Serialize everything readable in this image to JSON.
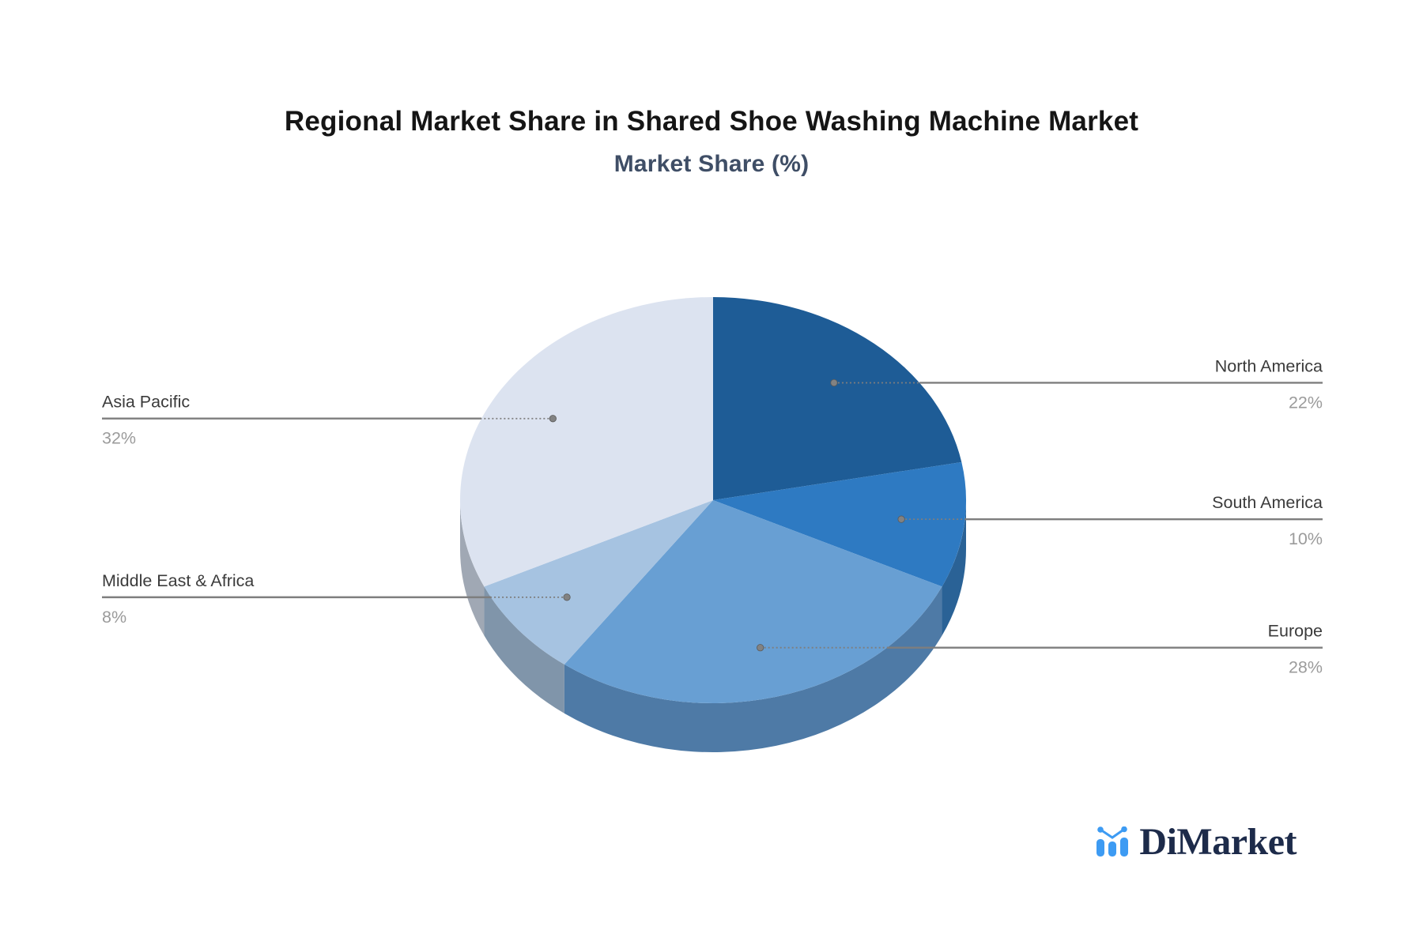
{
  "header": {
    "title": "Regional Market Share in Shared Shoe Washing Machine Market",
    "subtitle": "Market Share (%)"
  },
  "brand": {
    "name": "DiMarket",
    "icon": "bar-line-chart-icon",
    "icon_color": "#3d9bf3",
    "text_color": "#1d2b4a"
  },
  "chart_data": {
    "type": "pie",
    "effect": "3d",
    "title": "Regional Market Share in Shared Shoe Washing Machine Market",
    "subtitle": "Market Share (%)",
    "unit": "%",
    "direction": "clockwise",
    "start_angle_deg": 0,
    "legend_position": "none",
    "labeling": "leader-lines",
    "slices": [
      {
        "label": "North America",
        "value": 22,
        "display_value": "22%",
        "color": "#1e5c96",
        "side_color": "#174b7c",
        "label_side": "right"
      },
      {
        "label": "South America",
        "value": 10,
        "display_value": "10%",
        "color": "#2e7ac2",
        "side_color": "#2a6296",
        "label_side": "right"
      },
      {
        "label": "Europe",
        "value": 28,
        "display_value": "28%",
        "color": "#689fd3",
        "side_color": "#4e7aa6",
        "label_side": "right"
      },
      {
        "label": "Middle East & Africa",
        "value": 8,
        "display_value": "8%",
        "color": "#a6c3e1",
        "side_color": "#8095aa",
        "label_side": "left"
      },
      {
        "label": "Asia Pacific",
        "value": 32,
        "display_value": "32%",
        "color": "#dce3f0",
        "side_color": "#a0a8b4",
        "label_side": "left"
      }
    ],
    "style": {
      "label_color": "#3b3b3b",
      "value_color": "#9b9b9b",
      "line_color": "#7e7e7e",
      "dot_color": "#828282"
    }
  }
}
